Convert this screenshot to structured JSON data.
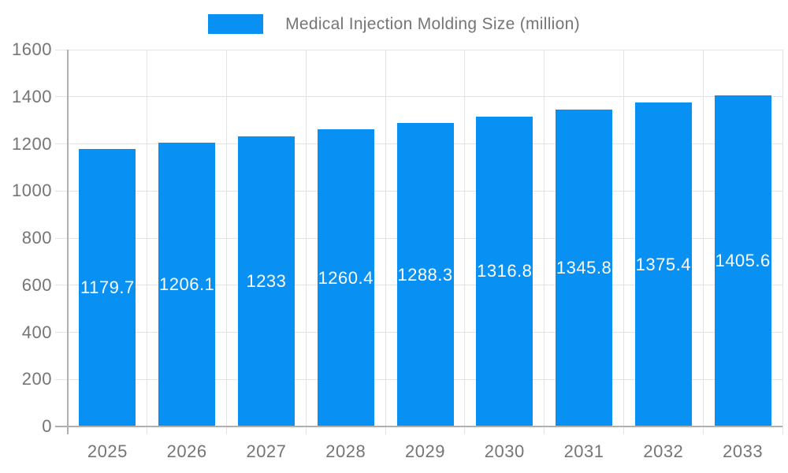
{
  "chart_data": {
    "type": "bar",
    "title": "Medical Injection Molding Size (million)",
    "categories": [
      "2025",
      "2026",
      "2027",
      "2028",
      "2029",
      "2030",
      "2031",
      "2032",
      "2033"
    ],
    "values": [
      1179.7,
      1206.1,
      1233,
      1260.4,
      1288.3,
      1316.8,
      1345.8,
      1375.4,
      1405.6
    ],
    "value_labels": [
      "1179.7",
      "1206.1",
      "1233",
      "1260.4",
      "1288.3",
      "1316.8",
      "1345.8",
      "1375.4",
      "1405.6"
    ],
    "xlabel": "",
    "ylabel": "",
    "ylim": [
      0,
      1600
    ],
    "ytick_step": 200,
    "yticks": [
      "0",
      "200",
      "400",
      "600",
      "800",
      "1000",
      "1200",
      "1400",
      "1600"
    ],
    "grid": true,
    "legend_position": "top",
    "colors": {
      "bar": "#0890F2",
      "grid": "#E3E3E3",
      "axis": "#B0B0B0",
      "tick_text": "#757575",
      "legend_text": "#757575",
      "bar_label_text": "#FFFFFF",
      "background": "#FFFFFF"
    }
  }
}
